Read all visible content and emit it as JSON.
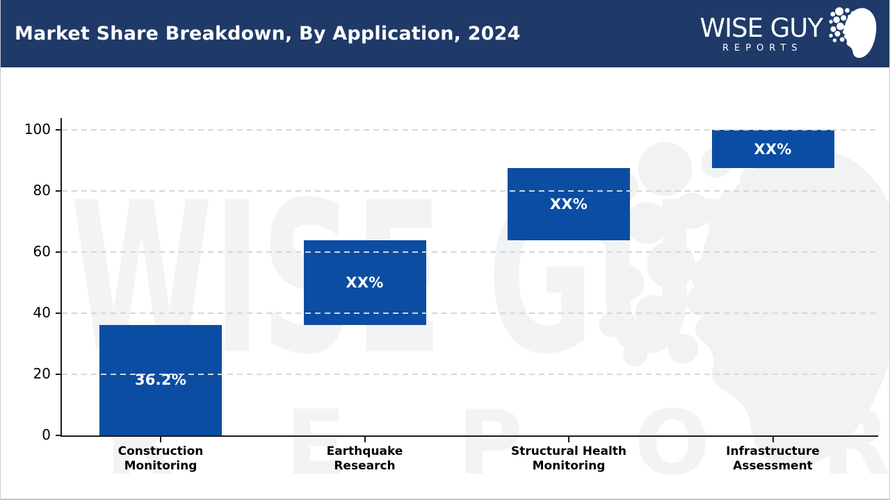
{
  "header": {
    "title": "Market Share Breakdown, By Application, 2024",
    "background_color": "#1f3a68",
    "logo": {
      "line1": "WISE GUY",
      "line2": "REPORTS"
    }
  },
  "watermark": {
    "line1": "WISE GUY",
    "line2": "R E P O R T S"
  },
  "colors": {
    "bar": "#0b4da2",
    "header_navy": "#1f3a68",
    "gridline": "#d6d6d6",
    "axis": "#1a1a1a",
    "bar_label_text": "#ffffff",
    "watermark": "#f2f3f5"
  },
  "chart_data": {
    "type": "bar",
    "subtype": "waterfall",
    "title": "Market Share Breakdown, By Application, 2024",
    "xlabel": "",
    "ylabel": "",
    "ylim": [
      0,
      104
    ],
    "y_ticks": [
      0,
      20,
      40,
      60,
      80,
      100
    ],
    "grid": true,
    "gridline_style": "dashed",
    "legend": false,
    "bar_color": "#0b4da2",
    "categories": [
      "Construction Monitoring",
      "Earthquake Research",
      "Structural Health Monitoring",
      "Infrastructure Assessment"
    ],
    "bars": [
      {
        "category": "Construction Monitoring",
        "label_lines": [
          "Construction",
          "Monitoring"
        ],
        "start": 0,
        "end": 36.2,
        "label": "36.2%"
      },
      {
        "category": "Earthquake Research",
        "label_lines": [
          "Earthquake",
          "Research"
        ],
        "start": 36.2,
        "end": 63.8,
        "label": "XX%"
      },
      {
        "category": "Structural Health Monitoring",
        "label_lines": [
          "Structural Health",
          "Monitoring"
        ],
        "start": 63.8,
        "end": 87.5,
        "label": "XX%"
      },
      {
        "category": "Infrastructure Assessment",
        "label_lines": [
          "Infrastructure",
          "Assessment"
        ],
        "start": 87.5,
        "end": 100,
        "label": "XX%"
      }
    ]
  }
}
